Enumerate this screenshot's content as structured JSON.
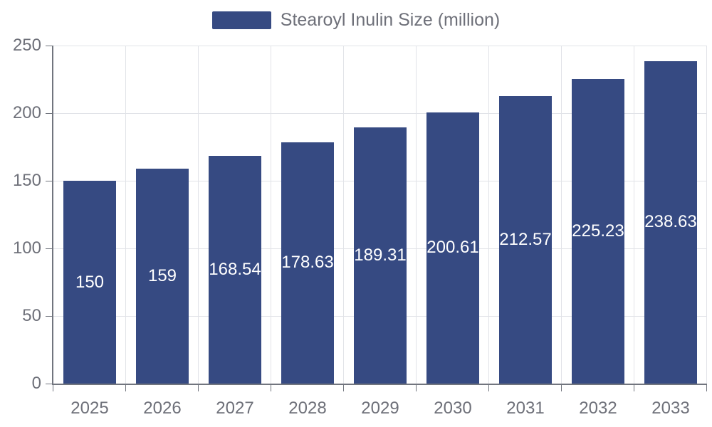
{
  "legend": {
    "label": "Stearoyl Inulin Size (million)"
  },
  "colors": {
    "bar": "#364A82",
    "axis_line": "#71757E",
    "grid_line": "#E1E3E8",
    "axis_text": "#6E7079",
    "bar_label_text": "#FFFFFF",
    "background": "#FFFFFF"
  },
  "chart_data": {
    "type": "bar",
    "title": "",
    "xlabel": "",
    "ylabel": "",
    "categories": [
      "2025",
      "2026",
      "2027",
      "2028",
      "2029",
      "2030",
      "2031",
      "2032",
      "2033"
    ],
    "series": [
      {
        "name": "Stearoyl Inulin Size (million)",
        "values": [
          150,
          159,
          168.54,
          178.63,
          189.31,
          200.61,
          212.57,
          225.23,
          238.63
        ],
        "value_labels": [
          "150",
          "159",
          "168.54",
          "178.63",
          "189.31",
          "200.61",
          "212.57",
          "225.23",
          "238.63"
        ]
      }
    ],
    "ylim": [
      0,
      250
    ],
    "y_ticks": [
      0,
      50,
      100,
      150,
      200,
      250
    ],
    "y_tick_labels": [
      "0",
      "50",
      "100",
      "150",
      "200",
      "250"
    ],
    "grid": true,
    "legend_position": "top-center",
    "value_label_position": "inside-center",
    "bar_color": "#364A82"
  }
}
